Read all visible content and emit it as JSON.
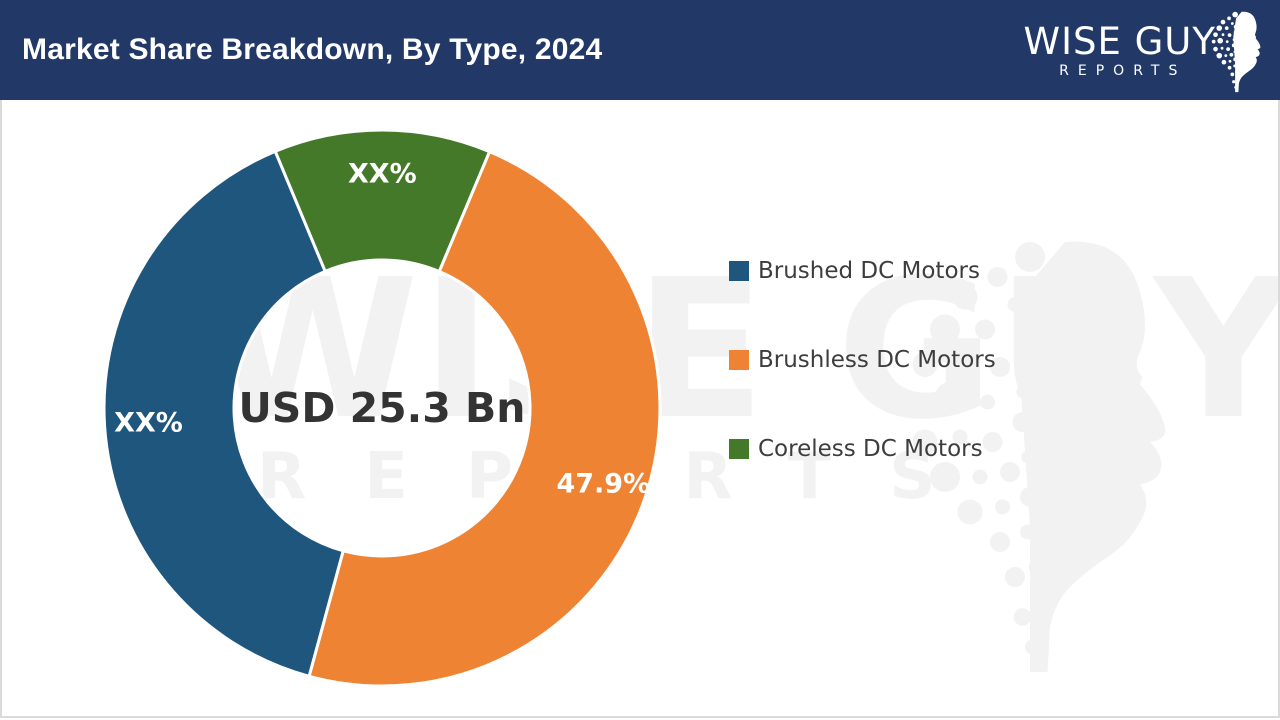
{
  "header": {
    "title": "Market Share Breakdown, By Type, 2024",
    "background_color": "#223968"
  },
  "brand": {
    "name": "WISE GUY",
    "sub": "REPORTS"
  },
  "watermark": {
    "text": "WISE GUY",
    "sub_text": "REPORTS",
    "color": "#f2f2f2"
  },
  "chart_data": {
    "type": "pie",
    "variant": "donut",
    "title": "Market Share Breakdown, By Type, 2024",
    "center_label": "USD 25.3 Bn",
    "total_value": 25.3,
    "total_unit": "USD Bn",
    "start_angle_deg": -22.6,
    "direction": "clockwise-from-top",
    "legend_position": "right",
    "segments": [
      {
        "name": "Coreless DC Motors",
        "value_pct": 12.6,
        "display_label": "XX%",
        "color": "#45792a"
      },
      {
        "name": "Brushless DC Motors",
        "value_pct": 47.9,
        "display_label": "47.9%",
        "color": "#ef8334"
      },
      {
        "name": "Brushed DC Motors",
        "value_pct": 39.5,
        "display_label": "XX%",
        "color": "#1f567e"
      }
    ],
    "label_text_color": "#ffffff"
  },
  "legend": {
    "items": [
      {
        "label": "Brushed DC Motors",
        "color": "#1f567e"
      },
      {
        "label": "Brushless DC Motors",
        "color": "#ef8334"
      },
      {
        "label": "Coreless DC Motors",
        "color": "#45792a"
      }
    ]
  }
}
